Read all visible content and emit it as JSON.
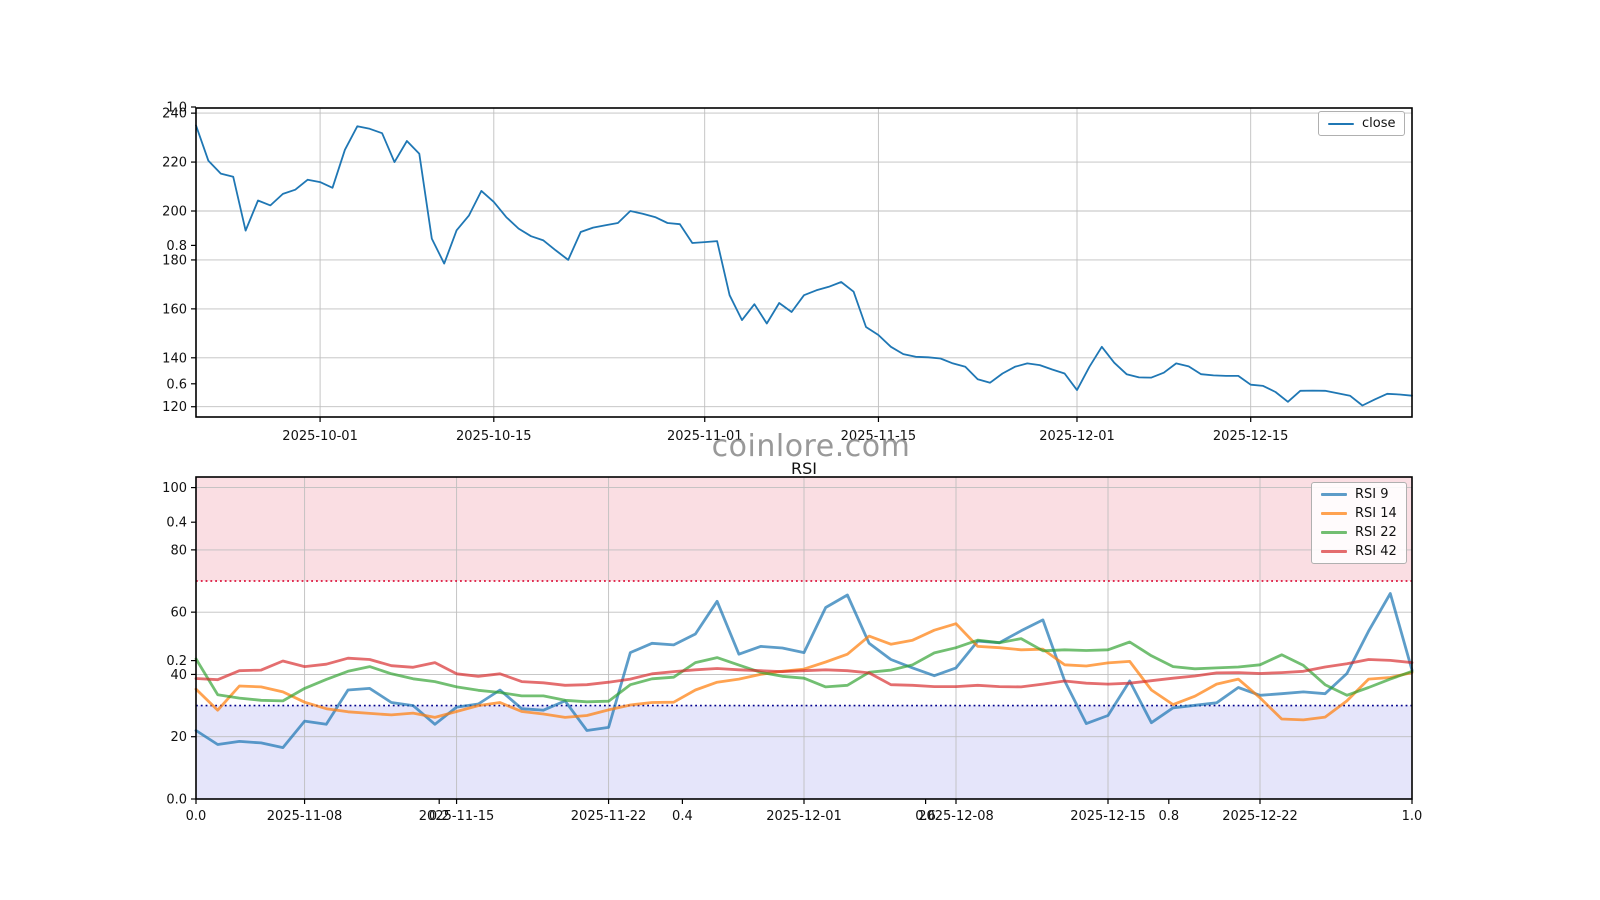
{
  "figure": {
    "watermark": "coinlore.com"
  },
  "overlay_axis": {
    "left_tick_labels": [
      "1.0",
      "0.8",
      "0.6",
      "0.4",
      "0.2",
      "0.0"
    ],
    "bottom_tick_labels": [
      "0.0",
      "0.2",
      "0.4",
      "0.6",
      "0.8",
      "1.0"
    ]
  },
  "chart_data": [
    {
      "type": "line",
      "title": "",
      "ylabel": "",
      "xlabel": "",
      "ylim": [
        115.8,
        242.1
      ],
      "grid": true,
      "legend_position": "upper right",
      "y_ticks": [
        120,
        140,
        160,
        180,
        200,
        220,
        240
      ],
      "x_ticks": [
        {
          "label": "2025-10-01",
          "index": 10
        },
        {
          "label": "2025-10-15",
          "index": 24
        },
        {
          "label": "2025-11-01",
          "index": 41
        },
        {
          "label": "2025-11-15",
          "index": 55
        },
        {
          "label": "2025-12-01",
          "index": 71
        },
        {
          "label": "2025-12-15",
          "index": 85
        }
      ],
      "series": [
        {
          "name": "close",
          "color": "#1f77b4",
          "width": 1.8,
          "values": [
            235.0,
            220.5,
            215.3,
            214.0,
            192.0,
            204.3,
            202.3,
            207.0,
            208.7,
            212.8,
            211.8,
            209.5,
            225.0,
            234.6,
            233.6,
            231.8,
            220.0,
            228.6,
            223.4,
            188.7,
            178.5,
            192.1,
            198.2,
            208.2,
            203.7,
            197.5,
            192.8,
            189.7,
            188.0,
            183.9,
            180.0,
            191.4,
            193.2,
            194.2,
            195.1,
            200.0,
            198.9,
            197.5,
            195.1,
            194.6,
            186.9,
            187.3,
            187.7,
            165.6,
            155.4,
            161.9,
            154.0,
            162.4,
            158.7,
            165.6,
            167.6,
            169.0,
            171.0,
            167.0,
            152.6,
            149.3,
            144.5,
            141.5,
            140.4,
            140.2,
            139.7,
            137.7,
            136.3,
            131.2,
            129.8,
            133.6,
            136.3,
            137.7,
            137.0,
            135.2,
            133.6,
            126.8,
            136.3,
            144.5,
            138.0,
            133.3,
            132.0,
            131.9,
            133.9,
            137.7,
            136.5,
            133.3,
            132.8,
            132.6,
            132.6,
            129.0,
            128.5,
            126.0,
            122.0,
            126.5,
            126.6,
            126.5,
            125.5,
            124.5,
            120.5,
            123.0,
            125.3,
            125.0,
            124.5
          ]
        }
      ]
    },
    {
      "type": "line",
      "title": "RSI",
      "ylim": [
        0,
        103.4
      ],
      "grid": true,
      "legend_position": "upper right",
      "overbought_level": 70,
      "oversold_level": 30,
      "band_colors": {
        "overbought": "rgba(220,20,60,0.14)",
        "oversold": "rgba(80,80,220,0.15)"
      },
      "threshold_colors": {
        "overbought": "#dc143c",
        "oversold": "#00008b"
      },
      "y_ticks": [
        20,
        40,
        60,
        80,
        100
      ],
      "x_ticks": [
        {
          "label": "2025-11-08",
          "index": 5
        },
        {
          "label": "2025-11-15",
          "index": 12
        },
        {
          "label": "2025-11-22",
          "index": 19
        },
        {
          "label": "2025-12-01",
          "index": 28
        },
        {
          "label": "2025-12-08",
          "index": 35
        },
        {
          "label": "2025-12-15",
          "index": 42
        },
        {
          "label": "2025-12-22",
          "index": 49
        }
      ],
      "series": [
        {
          "name": "RSI 9",
          "color": "rgba(31,119,180,0.72)",
          "width": 2.8,
          "values": [
            22.0,
            17.5,
            18.5,
            18.0,
            16.5,
            25.0,
            24.0,
            35.0,
            35.5,
            31.0,
            30.0,
            24.0,
            29.5,
            30.5,
            35.0,
            29.0,
            28.5,
            31.5,
            22.0,
            23.0,
            47.0,
            50.0,
            49.5,
            53.0,
            63.5,
            46.5,
            49.0,
            48.5,
            47.0,
            61.5,
            65.5,
            50.0,
            44.8,
            42.1,
            39.6,
            42.1,
            50.7,
            50.2,
            54.0,
            57.5,
            38.0,
            24.2,
            26.8,
            37.9,
            24.5,
            29.3,
            30.1,
            30.9,
            35.8,
            33.3,
            33.8,
            34.4,
            33.8,
            40.3,
            53.9,
            66.0,
            41.4
          ]
        },
        {
          "name": "RSI 14",
          "color": "rgba(255,127,14,0.72)",
          "width": 2.8,
          "values": [
            35.3,
            28.5,
            36.3,
            36.0,
            34.4,
            31.1,
            29.0,
            28.0,
            27.5,
            27.0,
            27.6,
            26.2,
            28.1,
            30.0,
            31.0,
            28.1,
            27.3,
            26.2,
            26.8,
            28.6,
            30.2,
            31.0,
            31.1,
            35.0,
            37.5,
            38.5,
            40.0,
            41.0,
            41.7,
            44.0,
            46.5,
            52.3,
            49.7,
            51.0,
            54.2,
            56.3,
            49.0,
            48.6,
            47.9,
            48.1,
            43.1,
            42.7,
            43.7,
            44.2,
            35.0,
            30.3,
            33.0,
            36.9,
            38.5,
            32.5,
            25.7,
            25.4,
            26.3,
            31.5,
            38.5,
            39.0,
            40.6
          ]
        },
        {
          "name": "RSI 22",
          "color": "rgba(44,160,44,0.67)",
          "width": 2.8,
          "values": [
            45.0,
            33.5,
            32.4,
            31.7,
            31.5,
            35.5,
            38.4,
            41.0,
            42.5,
            40.2,
            38.6,
            37.7,
            36.0,
            34.9,
            34.2,
            33.1,
            33.1,
            31.7,
            31.2,
            31.4,
            36.7,
            38.6,
            39.1,
            43.8,
            45.4,
            43.0,
            40.7,
            39.4,
            38.8,
            36.0,
            36.5,
            40.7,
            41.4,
            43.1,
            46.9,
            48.6,
            51.0,
            50.2,
            51.5,
            47.6,
            47.9,
            47.7,
            47.9,
            50.4,
            46.0,
            42.5,
            41.8,
            42.1,
            42.4,
            43.1,
            46.3,
            42.9,
            36.7,
            33.3,
            35.8,
            38.5,
            41.0
          ]
        },
        {
          "name": "RSI 42",
          "color": "rgba(214,39,40,0.67)",
          "width": 2.8,
          "values": [
            38.7,
            38.3,
            41.2,
            41.4,
            44.3,
            42.5,
            43.3,
            45.2,
            44.8,
            42.8,
            42.3,
            43.8,
            40.2,
            39.4,
            40.2,
            37.7,
            37.3,
            36.5,
            36.7,
            37.5,
            38.5,
            40.2,
            40.9,
            41.5,
            41.9,
            41.5,
            41.2,
            40.9,
            41.2,
            41.5,
            41.2,
            40.5,
            36.7,
            36.5,
            36.1,
            36.1,
            36.5,
            36.1,
            36.0,
            36.9,
            37.9,
            37.2,
            36.9,
            37.2,
            38.0,
            38.8,
            39.5,
            40.5,
            40.6,
            40.3,
            40.6,
            41.0,
            42.4,
            43.4,
            44.8,
            44.5,
            43.8
          ]
        }
      ]
    }
  ]
}
